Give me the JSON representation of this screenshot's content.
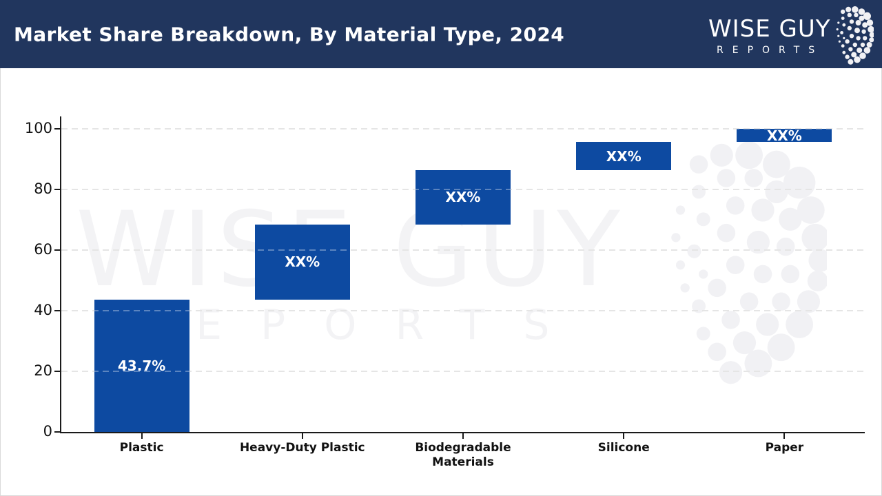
{
  "header": {
    "title": "Market Share Breakdown, By Material Type, 2024",
    "bg_color": "#21365E",
    "logo": {
      "line1": "WISE GUY",
      "line2": "REPORTS"
    }
  },
  "watermark": {
    "line1": "WISE GUY",
    "line2": "REPORTS",
    "color": "#f3f3f5"
  },
  "chart_data": {
    "type": "bar",
    "subtype": "waterfall",
    "title": "Market Share Breakdown, By Material Type, 2024",
    "categories": [
      "Plastic",
      "Heavy-Duty Plastic",
      "Biodegradable Materials",
      "Silicone",
      "Paper"
    ],
    "segments": [
      {
        "category": "Plastic",
        "start": 0,
        "end": 43.7,
        "label": "43.7%"
      },
      {
        "category": "Heavy-Duty Plastic",
        "start": 43.7,
        "end": 68.5,
        "label": "XX%"
      },
      {
        "category": "Biodegradable Materials",
        "start": 68.5,
        "end": 86.3,
        "label": "XX%"
      },
      {
        "category": "Silicone",
        "start": 86.3,
        "end": 95.6,
        "label": "XX%"
      },
      {
        "category": "Paper",
        "start": 95.6,
        "end": 100,
        "label": "XX%"
      }
    ],
    "yticks": [
      0,
      20,
      40,
      60,
      80,
      100
    ],
    "ylim": [
      0,
      104
    ],
    "xlabel": "",
    "ylabel": "",
    "grid": true,
    "legend": false,
    "bar_color": "#0D4AA1",
    "grid_color": "#d9d9d9",
    "axis_color": "#1a1a1a"
  }
}
